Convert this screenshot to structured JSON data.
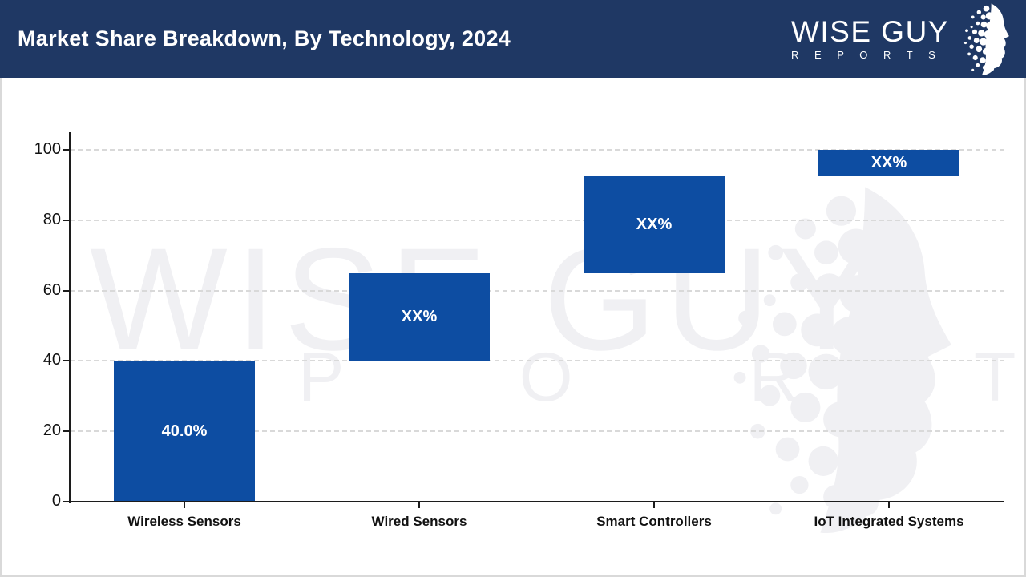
{
  "header": {
    "title": "Market Share Breakdown, By Technology, 2024",
    "logo": {
      "line1": "WISE GUY",
      "line2": "R E P O R T S"
    }
  },
  "watermark": {
    "line1": "WISE GUY",
    "line2": "P O R T S"
  },
  "colors": {
    "header_bg": "#1f3864",
    "bar": "#0d4da2",
    "bar_label": "#ffffff",
    "grid": "#d9d9d9",
    "axis": "#1c1c1c",
    "watermark": "#f0f0f3"
  },
  "chart_data": {
    "type": "bar",
    "subtype": "waterfall",
    "title": "Market Share Breakdown, By Technology, 2024",
    "categories": [
      "Wireless Sensors",
      "Wired Sensors",
      "Smart Controllers",
      "IoT Integrated Systems"
    ],
    "segments": [
      {
        "category": "Wireless Sensors",
        "start": 0,
        "end": 40,
        "label": "40.0%"
      },
      {
        "category": "Wired Sensors",
        "start": 40,
        "end": 65,
        "label": "XX%"
      },
      {
        "category": "Smart Controllers",
        "start": 65,
        "end": 92.5,
        "label": "XX%"
      },
      {
        "category": "IoT Integrated Systems",
        "start": 92.5,
        "end": 100,
        "label": "XX%"
      }
    ],
    "yticks": [
      0,
      20,
      40,
      60,
      80,
      100
    ],
    "ylim": [
      0,
      105
    ],
    "xlabel": "",
    "ylabel": "",
    "grid": "dashed-horizontal",
    "legend": "none"
  }
}
